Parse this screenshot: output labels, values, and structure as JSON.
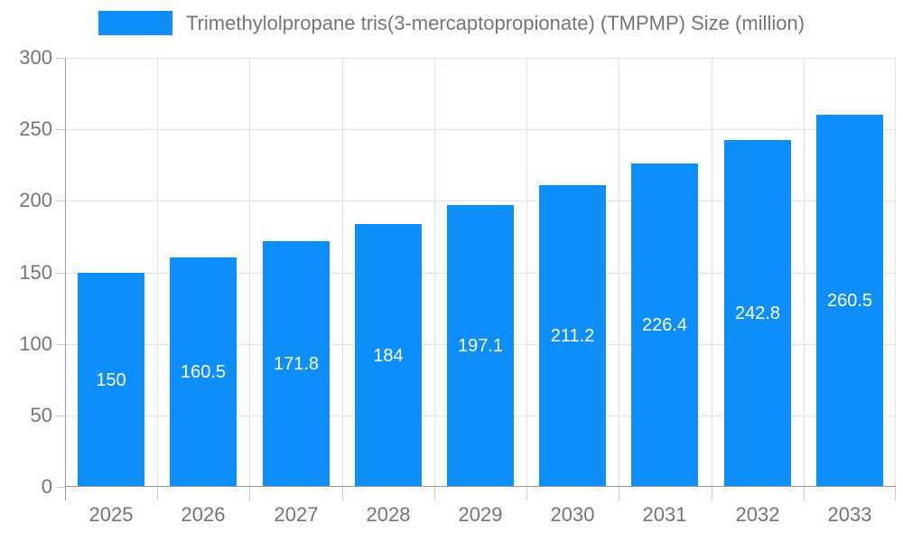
{
  "chart_data": {
    "type": "bar",
    "title": "Trimethylolpropane tris(3-mercaptopropionate) (TMPMP) Size (million)",
    "categories": [
      "2025",
      "2026",
      "2027",
      "2028",
      "2029",
      "2030",
      "2031",
      "2032",
      "2033"
    ],
    "values": [
      150,
      160.5,
      171.8,
      184,
      197.1,
      211.2,
      226.4,
      242.8,
      260.5
    ],
    "xlabel": "",
    "ylabel": "",
    "ylim": [
      0,
      300
    ],
    "yticks": [
      0,
      50,
      100,
      150,
      200,
      250,
      300
    ],
    "grid": true,
    "legend_position": "top",
    "colors": {
      "bar": "#0d8ef8",
      "axis": "#999999",
      "grid": "#e3e3e3",
      "tick": "#cccccc",
      "text": "#757575",
      "bar_label": "#ffffff"
    }
  }
}
